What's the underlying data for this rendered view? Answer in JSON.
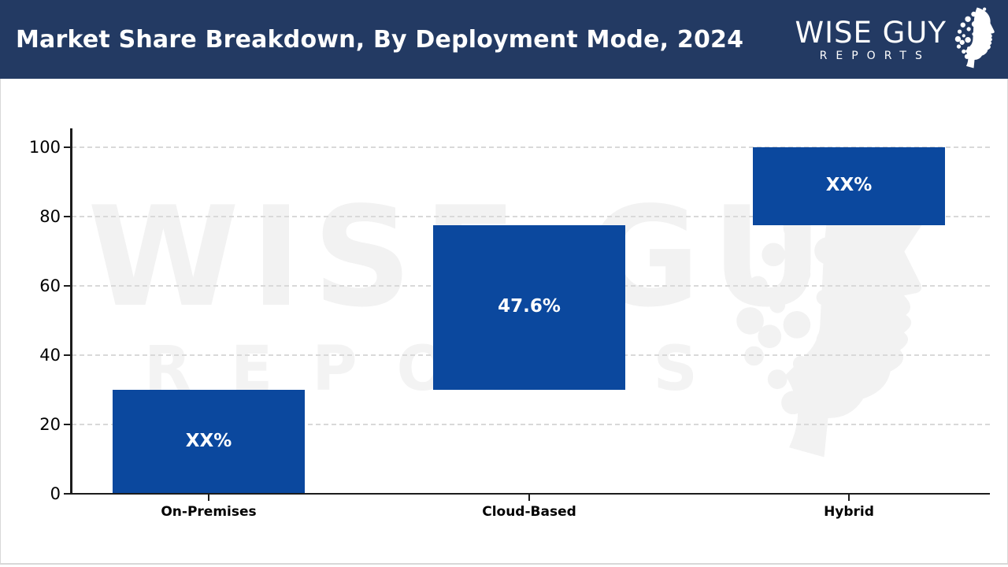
{
  "header": {
    "title": "Market Share Breakdown, By Deployment Mode, 2024",
    "logo": {
      "line1": "WISE GUY",
      "line2": "REPORTS"
    }
  },
  "watermark": {
    "line1": "WISE GUY",
    "line2": "REPORTS"
  },
  "chart_data": {
    "type": "bar",
    "subtype": "floating-segment-waterfall",
    "title": "Market Share Breakdown, By Deployment Mode, 2024",
    "categories": [
      "On-Premises",
      "Cloud-Based",
      "Hybrid"
    ],
    "series": [
      {
        "name": "On-Premises",
        "label": "XX%",
        "start": 0,
        "end": 30,
        "masked": true
      },
      {
        "name": "Cloud-Based",
        "label": "47.6%",
        "start": 30,
        "end": 77.6,
        "value": 47.6
      },
      {
        "name": "Hybrid",
        "label": "XX%",
        "start": 77.6,
        "end": 100,
        "masked": true
      }
    ],
    "xlabel": "",
    "ylabel": "",
    "ylim": [
      0,
      100
    ],
    "yticks": [
      0,
      20,
      40,
      60,
      80,
      100
    ],
    "grid": "horizontal-dashed",
    "legend": "none",
    "bar_color": "#0b489e",
    "bar_label_color": "#ffffff"
  },
  "colors": {
    "header_bg": "#233a63",
    "header_text": "#ffffff",
    "bar": "#0b489e",
    "grid": "#d9d9d9",
    "axis": "#1c1c1c",
    "watermark": "#f2f2f2",
    "content_border": "#d8d8d8"
  }
}
